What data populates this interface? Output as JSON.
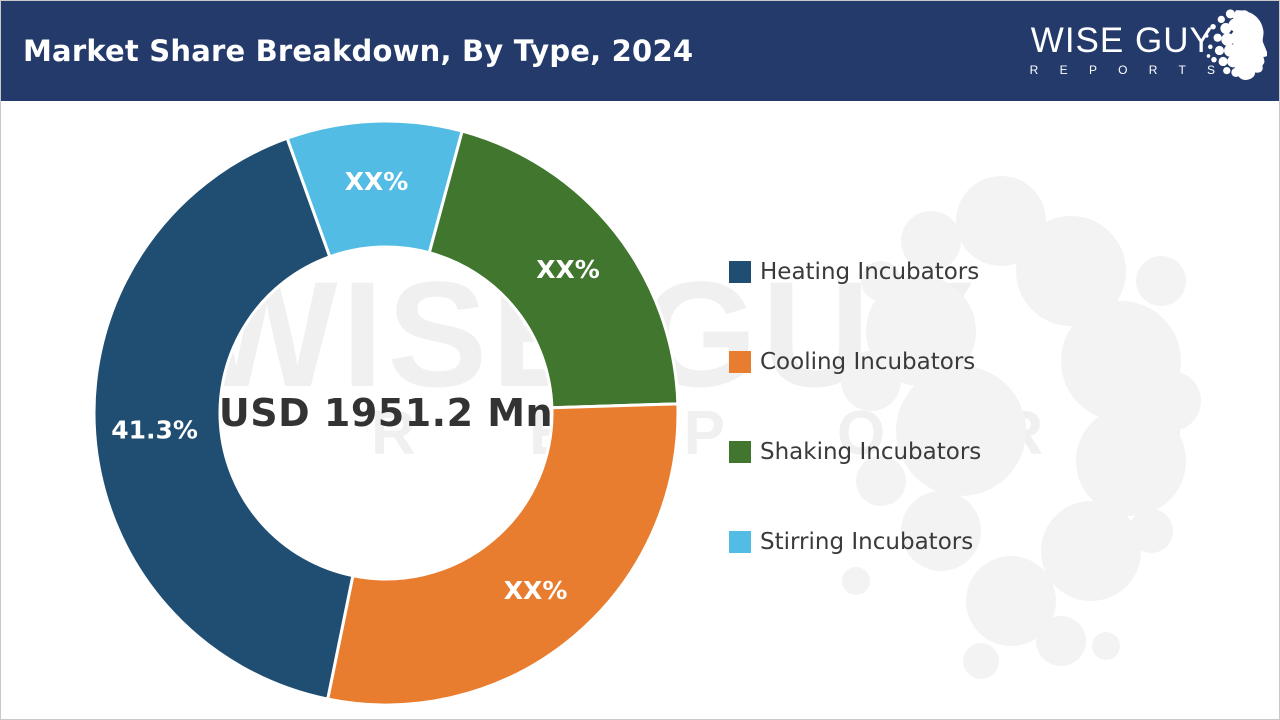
{
  "header": {
    "title": "Market Share Breakdown, By Type, 2024",
    "bg_color": "#243a6b",
    "logo": {
      "line1": "WISE GUY",
      "line2": "R E P O R T S"
    }
  },
  "watermark": {
    "line1": "WISE GUY",
    "line2": "R E P O R T S"
  },
  "chart_data": {
    "type": "pie",
    "subtype": "donut",
    "title": "Market Share Breakdown, By Type, 2024",
    "center_label": "USD 1951.2 Mn",
    "start_angle_deg": -19.8,
    "draw_direction": "clockwise_reverse_of_legend_order",
    "legend_position": "right",
    "slices": [
      {
        "name": "Heating Incubators",
        "value_pct": 41.3,
        "label": "41.3%",
        "color": "#1f4e72"
      },
      {
        "name": "Cooling Incubators",
        "value_pct": 28.7,
        "label": "XX%",
        "color": "#e87d2f"
      },
      {
        "name": "Shaking Incubators",
        "value_pct": 20.3,
        "label": "XX%",
        "color": "#40762d"
      },
      {
        "name": "Stirring Incubators",
        "value_pct": 9.7,
        "label": "XX%",
        "color": "#52bce4"
      }
    ]
  }
}
